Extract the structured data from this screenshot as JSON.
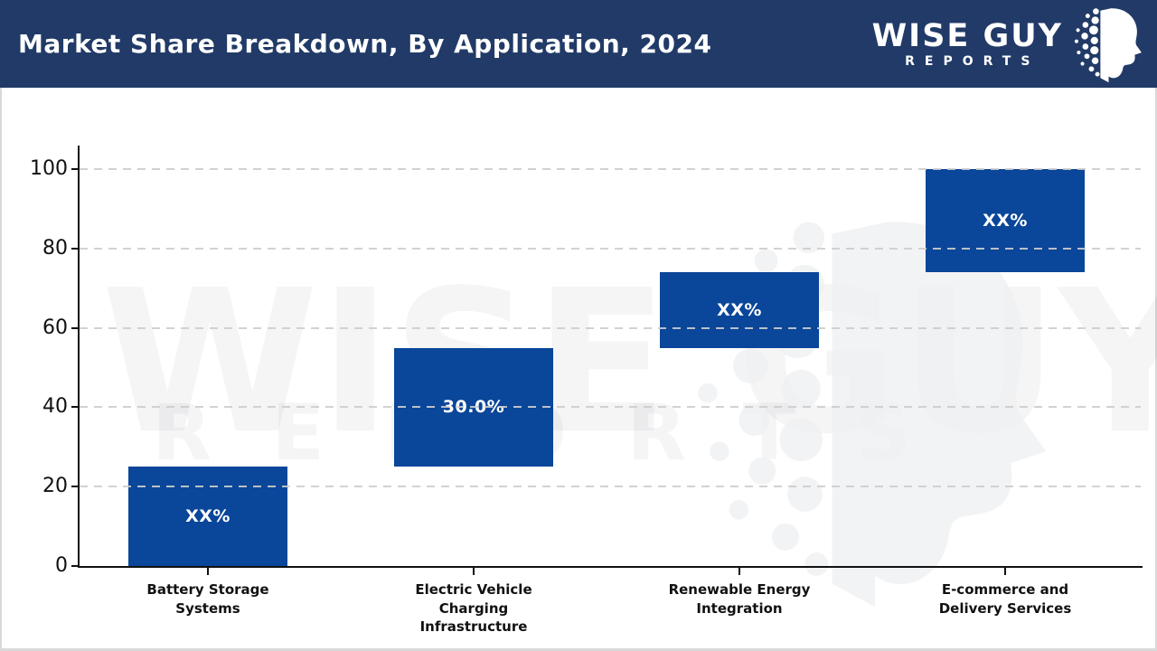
{
  "header": {
    "title": "Market Share Breakdown, By Application, 2024",
    "logo": {
      "line1": "WISE GUY",
      "line2": "REPORTS"
    }
  },
  "watermark": {
    "line1": "WISE GUY",
    "line2": "REPORTS"
  },
  "chart_data": {
    "type": "bar",
    "subtype": "floating-waterfall",
    "title": "Market Share Breakdown, By Application, 2024",
    "categories": [
      "Battery Storage\nSystems",
      "Electric Vehicle\nCharging\nInfrastructure",
      "Renewable Energy\nIntegration",
      "E-commerce and\nDelivery Services"
    ],
    "segments": [
      {
        "start": 0,
        "end": 25,
        "value": 25,
        "label": "XX%"
      },
      {
        "start": 25,
        "end": 55,
        "value": 30,
        "label": "30.0%"
      },
      {
        "start": 55,
        "end": 74,
        "value": 19,
        "label": "XX%"
      },
      {
        "start": 74,
        "end": 100,
        "value": 26,
        "label": "XX%"
      }
    ],
    "yticks": [
      0,
      20,
      40,
      60,
      80,
      100
    ],
    "ylim": [
      0,
      105.5
    ],
    "xlabel": "",
    "ylabel": "",
    "grid": "horizontal-dashed",
    "legend": "none",
    "bar_color": "#0a4699",
    "bar_label_color": "#ffffff"
  },
  "colors": {
    "header_bg": "#213a67",
    "bar": "#0a4699",
    "axis": "#111111",
    "grid": "#cdcdcd",
    "frame": "#d9d9d9",
    "watermark": "#f0f1f3"
  }
}
